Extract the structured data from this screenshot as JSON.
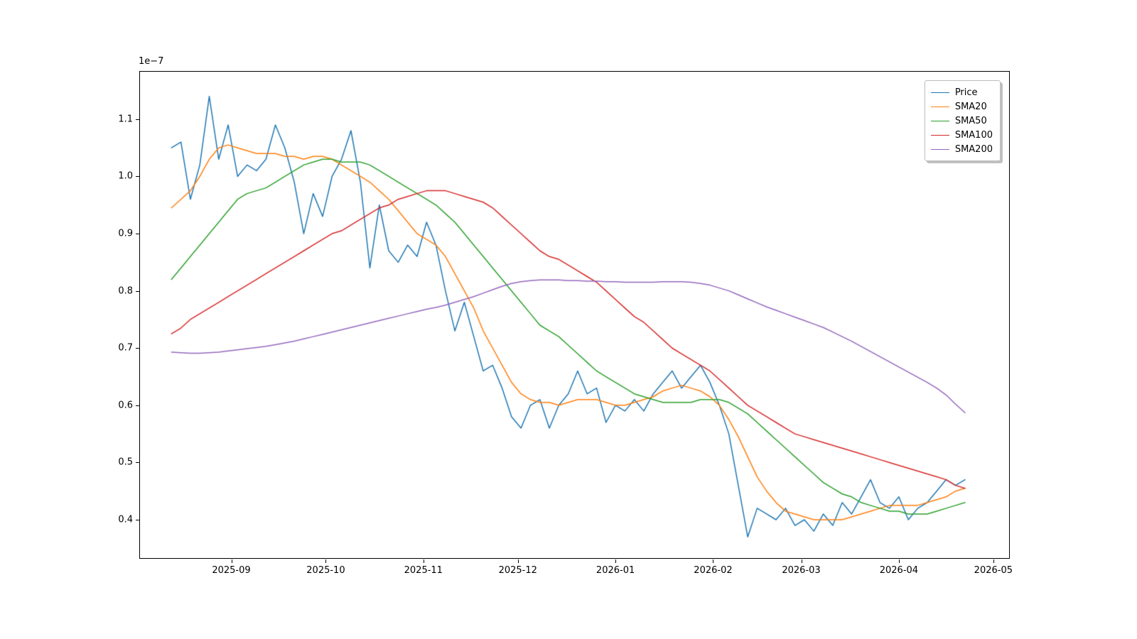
{
  "figure": {
    "background": "#ffffff",
    "offset_text": "1e−7"
  },
  "chart_data": {
    "type": "line",
    "title": "",
    "xlabel": "",
    "ylabel": "",
    "grid": false,
    "y_scale_factor": "1e-7",
    "ylim": [
      0.333,
      1.183
    ],
    "xlim_dates": [
      "2025-08-03",
      "2026-05-06"
    ],
    "y_ticks": [
      0.4,
      0.5,
      0.6,
      0.7,
      0.8,
      0.9,
      1.0,
      1.1
    ],
    "y_tick_labels": [
      "0.4",
      "0.5",
      "0.6",
      "0.7",
      "0.8",
      "0.9",
      "1.0",
      "1.1"
    ],
    "x_ticks_dates": [
      "2025-09-01",
      "2025-10-01",
      "2025-11-01",
      "2025-12-01",
      "2026-01-01",
      "2026-02-01",
      "2026-03-01",
      "2026-04-01",
      "2026-05-01"
    ],
    "x_tick_labels": [
      "2025-09",
      "2025-10",
      "2025-11",
      "2025-12",
      "2026-01",
      "2026-02",
      "2026-03",
      "2026-04",
      "2026-05"
    ],
    "legend": {
      "position": "upper right",
      "entries": [
        "Price",
        "SMA20",
        "SMA50",
        "SMA100",
        "SMA200"
      ]
    },
    "dates": [
      "2025-08-13",
      "2025-08-16",
      "2025-08-19",
      "2025-08-22",
      "2025-08-25",
      "2025-08-28",
      "2025-08-31",
      "2025-09-03",
      "2025-09-06",
      "2025-09-09",
      "2025-09-12",
      "2025-09-15",
      "2025-09-18",
      "2025-09-21",
      "2025-09-24",
      "2025-09-27",
      "2025-09-30",
      "2025-10-03",
      "2025-10-06",
      "2025-10-09",
      "2025-10-12",
      "2025-10-15",
      "2025-10-18",
      "2025-10-21",
      "2025-10-24",
      "2025-10-27",
      "2025-10-30",
      "2025-11-02",
      "2025-11-05",
      "2025-11-08",
      "2025-11-11",
      "2025-11-14",
      "2025-11-17",
      "2025-11-20",
      "2025-11-23",
      "2025-11-26",
      "2025-11-29",
      "2025-12-02",
      "2025-12-05",
      "2025-12-08",
      "2025-12-11",
      "2025-12-14",
      "2025-12-17",
      "2025-12-20",
      "2025-12-23",
      "2025-12-26",
      "2025-12-29",
      "2026-01-01",
      "2026-01-04",
      "2026-01-07",
      "2026-01-10",
      "2026-01-13",
      "2026-01-16",
      "2026-01-19",
      "2026-01-22",
      "2026-01-25",
      "2026-01-28",
      "2026-01-31",
      "2026-02-03",
      "2026-02-06",
      "2026-02-09",
      "2026-02-12",
      "2026-02-15",
      "2026-02-18",
      "2026-02-21",
      "2026-02-24",
      "2026-02-27",
      "2026-03-02",
      "2026-03-05",
      "2026-03-08",
      "2026-03-11",
      "2026-03-14",
      "2026-03-17",
      "2026-03-20",
      "2026-03-23",
      "2026-03-26",
      "2026-03-29",
      "2026-04-01",
      "2026-04-04",
      "2026-04-07",
      "2026-04-10",
      "2026-04-13",
      "2026-04-16",
      "2026-04-19",
      "2026-04-22"
    ],
    "series": [
      {
        "name": "Price",
        "color": "#1f77b4",
        "values": [
          1.05,
          1.06,
          0.96,
          1.02,
          1.14,
          1.03,
          1.09,
          1.0,
          1.02,
          1.01,
          1.03,
          1.09,
          1.05,
          0.99,
          0.9,
          0.97,
          0.93,
          1.0,
          1.03,
          1.08,
          0.99,
          0.84,
          0.95,
          0.87,
          0.85,
          0.88,
          0.86,
          0.92,
          0.88,
          0.8,
          0.73,
          0.78,
          0.72,
          0.66,
          0.67,
          0.63,
          0.58,
          0.56,
          0.6,
          0.61,
          0.56,
          0.6,
          0.62,
          0.66,
          0.62,
          0.63,
          0.57,
          0.6,
          0.59,
          0.61,
          0.59,
          0.62,
          0.64,
          0.66,
          0.63,
          0.65,
          0.67,
          0.64,
          0.6,
          0.55,
          0.46,
          0.37,
          0.42,
          0.41,
          0.4,
          0.42,
          0.39,
          0.4,
          0.38,
          0.41,
          0.39,
          0.43,
          0.41,
          0.44,
          0.47,
          0.43,
          0.42,
          0.44,
          0.4,
          0.42,
          0.43,
          0.45,
          0.47,
          0.46,
          0.47
        ]
      },
      {
        "name": "SMA20",
        "color": "#ff7f0e",
        "values": [
          0.945,
          0.96,
          0.975,
          1.0,
          1.03,
          1.05,
          1.055,
          1.05,
          1.045,
          1.04,
          1.04,
          1.04,
          1.035,
          1.035,
          1.03,
          1.035,
          1.035,
          1.03,
          1.02,
          1.01,
          1.0,
          0.99,
          0.975,
          0.96,
          0.94,
          0.92,
          0.9,
          0.89,
          0.88,
          0.86,
          0.83,
          0.8,
          0.77,
          0.73,
          0.7,
          0.67,
          0.64,
          0.62,
          0.61,
          0.605,
          0.605,
          0.6,
          0.605,
          0.61,
          0.61,
          0.61,
          0.605,
          0.6,
          0.6,
          0.605,
          0.61,
          0.615,
          0.625,
          0.63,
          0.635,
          0.63,
          0.625,
          0.615,
          0.6,
          0.575,
          0.545,
          0.51,
          0.475,
          0.45,
          0.43,
          0.415,
          0.41,
          0.405,
          0.4,
          0.4,
          0.4,
          0.4,
          0.405,
          0.41,
          0.415,
          0.42,
          0.425,
          0.425,
          0.425,
          0.425,
          0.43,
          0.435,
          0.44,
          0.45,
          0.455
        ]
      },
      {
        "name": "SMA50",
        "color": "#2ca02c",
        "values": [
          0.82,
          0.84,
          0.86,
          0.88,
          0.9,
          0.92,
          0.94,
          0.96,
          0.97,
          0.975,
          0.98,
          0.99,
          1.0,
          1.01,
          1.02,
          1.025,
          1.03,
          1.03,
          1.025,
          1.025,
          1.025,
          1.02,
          1.01,
          1.0,
          0.99,
          0.98,
          0.97,
          0.96,
          0.95,
          0.935,
          0.92,
          0.9,
          0.88,
          0.86,
          0.84,
          0.82,
          0.8,
          0.78,
          0.76,
          0.74,
          0.73,
          0.72,
          0.705,
          0.69,
          0.675,
          0.66,
          0.65,
          0.64,
          0.63,
          0.62,
          0.615,
          0.61,
          0.605,
          0.605,
          0.605,
          0.605,
          0.61,
          0.61,
          0.61,
          0.605,
          0.595,
          0.585,
          0.57,
          0.555,
          0.54,
          0.525,
          0.51,
          0.495,
          0.48,
          0.465,
          0.455,
          0.445,
          0.44,
          0.43,
          0.425,
          0.42,
          0.415,
          0.415,
          0.41,
          0.41,
          0.41,
          0.415,
          0.42,
          0.425,
          0.43
        ]
      },
      {
        "name": "SMA100",
        "color": "#d62728",
        "values": [
          0.725,
          0.735,
          0.75,
          0.76,
          0.77,
          0.78,
          0.79,
          0.8,
          0.81,
          0.82,
          0.83,
          0.84,
          0.85,
          0.86,
          0.87,
          0.88,
          0.89,
          0.9,
          0.905,
          0.915,
          0.925,
          0.935,
          0.945,
          0.95,
          0.96,
          0.965,
          0.97,
          0.975,
          0.975,
          0.975,
          0.97,
          0.965,
          0.96,
          0.955,
          0.945,
          0.93,
          0.915,
          0.9,
          0.885,
          0.87,
          0.86,
          0.855,
          0.845,
          0.835,
          0.825,
          0.815,
          0.8,
          0.785,
          0.77,
          0.755,
          0.745,
          0.73,
          0.715,
          0.7,
          0.69,
          0.68,
          0.67,
          0.66,
          0.645,
          0.63,
          0.615,
          0.6,
          0.59,
          0.58,
          0.57,
          0.56,
          0.55,
          0.545,
          0.54,
          0.535,
          0.53,
          0.525,
          0.52,
          0.515,
          0.51,
          0.505,
          0.5,
          0.495,
          0.49,
          0.485,
          0.48,
          0.475,
          0.47,
          0.46,
          0.455
        ]
      },
      {
        "name": "SMA200",
        "color": "#9467bd",
        "values": [
          0.693,
          0.692,
          0.691,
          0.691,
          0.692,
          0.693,
          0.695,
          0.697,
          0.699,
          0.701,
          0.703,
          0.706,
          0.709,
          0.712,
          0.716,
          0.72,
          0.724,
          0.728,
          0.732,
          0.736,
          0.74,
          0.744,
          0.748,
          0.752,
          0.756,
          0.76,
          0.764,
          0.768,
          0.771,
          0.775,
          0.78,
          0.785,
          0.79,
          0.796,
          0.802,
          0.808,
          0.813,
          0.816,
          0.818,
          0.819,
          0.819,
          0.819,
          0.818,
          0.818,
          0.817,
          0.817,
          0.816,
          0.816,
          0.815,
          0.815,
          0.815,
          0.815,
          0.816,
          0.816,
          0.816,
          0.815,
          0.813,
          0.81,
          0.805,
          0.8,
          0.793,
          0.786,
          0.779,
          0.772,
          0.766,
          0.76,
          0.754,
          0.748,
          0.742,
          0.736,
          0.728,
          0.72,
          0.712,
          0.703,
          0.694,
          0.685,
          0.676,
          0.667,
          0.658,
          0.649,
          0.64,
          0.63,
          0.618,
          0.602,
          0.587
        ]
      }
    ]
  }
}
